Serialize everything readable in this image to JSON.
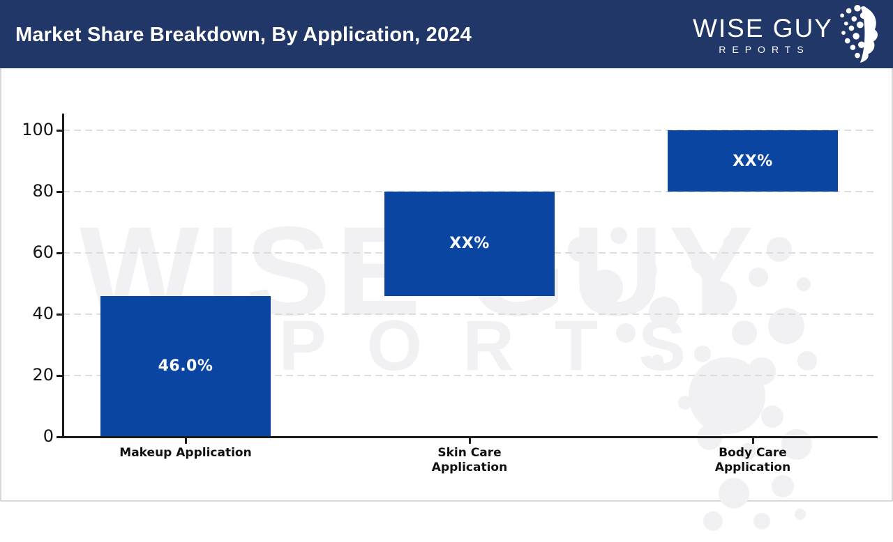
{
  "header": {
    "title": "Market Share Breakdown, By Application, 2024",
    "logo": {
      "line1": "WISE GUY",
      "line2": "REPORTS"
    }
  },
  "watermark": {
    "line1": "WISE GUY",
    "line2": "REPORTS"
  },
  "colors": {
    "header_bg": "#213768",
    "bar_fill": "#0a46a1",
    "bar_label_text": "#ffffff",
    "watermark": "#f1f1f3",
    "axis": "#1c1c1c",
    "gridline": "#dcdcdc"
  },
  "chart_data": {
    "type": "bar",
    "subtype": "waterfall",
    "title": "Market Share Breakdown, By Application, 2024",
    "xlabel": "",
    "ylabel": "",
    "ylim": [
      0,
      105
    ],
    "y_ticks": [
      0,
      20,
      40,
      60,
      80,
      100
    ],
    "grid": "horizontal-dashed",
    "legend": "none",
    "categories": [
      "Makeup Application",
      "Skin Care Application",
      "Body Care Application"
    ],
    "category_label_lines": [
      [
        "Makeup Application"
      ],
      [
        "Skin Care",
        "Application"
      ],
      [
        "Body Care",
        "Application"
      ]
    ],
    "bars": [
      {
        "category": "Makeup Application",
        "start": 0,
        "end": 46,
        "value": 46,
        "label": "46.0%"
      },
      {
        "category": "Skin Care Application",
        "start": 46,
        "end": 80,
        "value": 34,
        "label": "XX%"
      },
      {
        "category": "Body Care Application",
        "start": 80,
        "end": 100,
        "value": 20,
        "label": "XX%"
      }
    ]
  }
}
